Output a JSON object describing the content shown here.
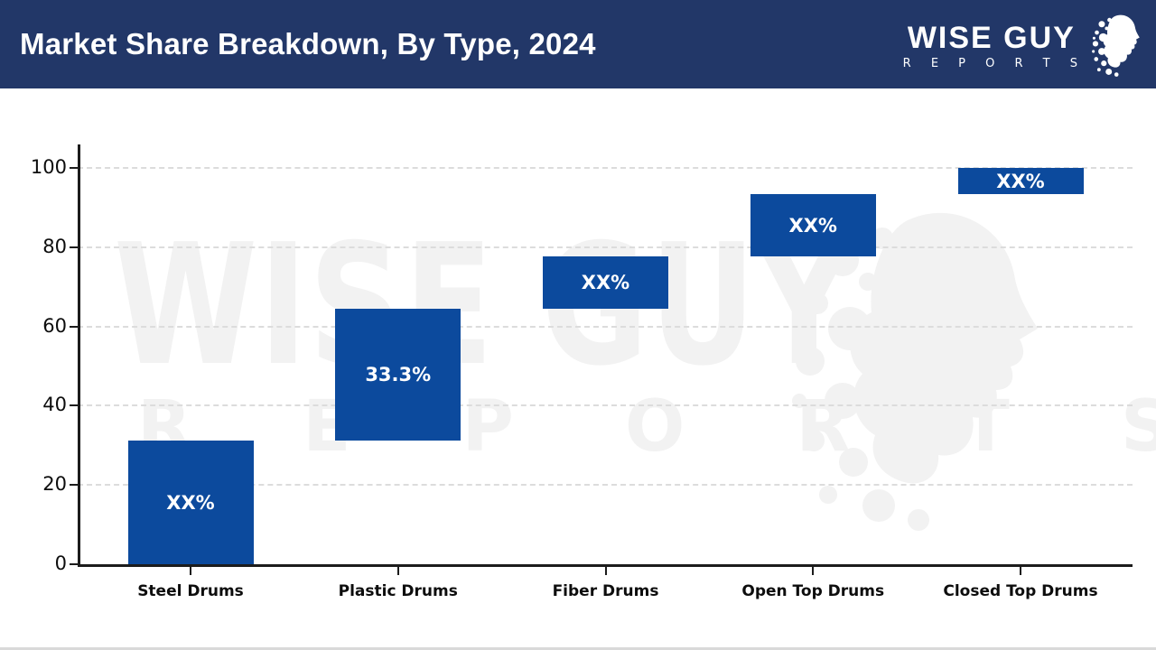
{
  "header": {
    "title": "Market Share Breakdown, By Type, 2024",
    "bg_color": "#223768",
    "logo": {
      "line1": "WISE GUY",
      "line2": "R E P O R T S"
    }
  },
  "watermark": {
    "line1": "WISE GUY",
    "line2": "R E P O R T S"
  },
  "chart_data": {
    "type": "bar",
    "subtype": "waterfall",
    "title": "Market Share Breakdown, By Type, 2024",
    "categories": [
      "Steel Drums",
      "Plastic Drums",
      "Fiber Drums",
      "Open Top Drums",
      "Closed Top Drums"
    ],
    "segments": [
      {
        "category": "Steel Drums",
        "start": 0,
        "end": 31.1,
        "label": "XX%"
      },
      {
        "category": "Plastic Drums",
        "start": 31.1,
        "end": 64.4,
        "label": "33.3%"
      },
      {
        "category": "Fiber Drums",
        "start": 64.4,
        "end": 77.7,
        "label": "XX%"
      },
      {
        "category": "Open Top Drums",
        "start": 77.7,
        "end": 93.3,
        "label": "XX%"
      },
      {
        "category": "Closed Top Drums",
        "start": 93.3,
        "end": 100,
        "label": "XX%"
      }
    ],
    "xlabel": "",
    "ylabel": "",
    "ylim": [
      0,
      105
    ],
    "yticks": [
      0,
      20,
      40,
      60,
      80,
      100
    ],
    "grid": "horizontal-dashed",
    "legend": "none",
    "bar_color": "#0c4a9d",
    "label_color": "#ffffff"
  }
}
